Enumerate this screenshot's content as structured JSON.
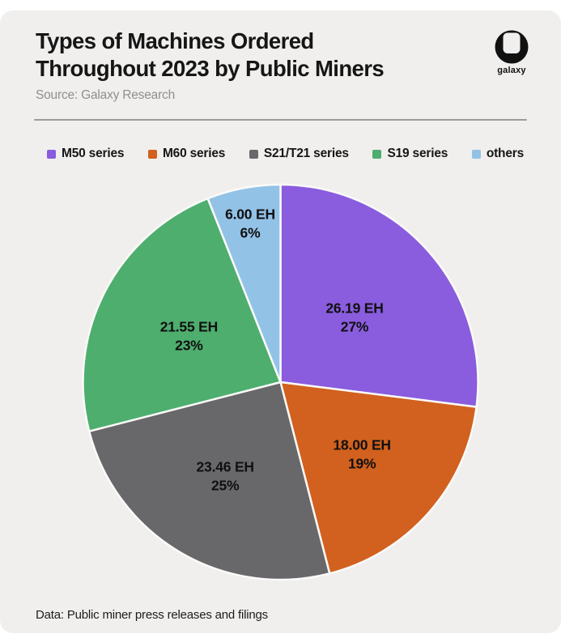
{
  "header": {
    "title_line1": "Types of Machines Ordered",
    "title_line2": "Throughout 2023 by Public Miners",
    "source": "Source: Galaxy Research",
    "logo_text": "galaxy"
  },
  "footer": {
    "note": "Data: Public miner press releases and filings"
  },
  "colors": {
    "page": "#FFFFFF",
    "card_background": "#F0EFED",
    "divider": "#9C9C9C",
    "slice_separator": "#FAFAF8",
    "label_text": "#101010",
    "logo": "#111111"
  },
  "chart_data": {
    "type": "pie",
    "title": "Types of Machines Ordered Throughout 2023 by Public Miners",
    "unit": "EH",
    "start_angle_deg": 0,
    "direction": "clockwise",
    "legend_position": "top",
    "slices": [
      {
        "label": "M50 series",
        "value": 26.19,
        "percent": 27,
        "color": "#8A5CDE",
        "value_label": "26.19 EH",
        "percent_label": "27%",
        "label_radius": 0.5
      },
      {
        "label": "M60 series",
        "value": 18.0,
        "percent": 19,
        "color": "#D2601E",
        "value_label": "18.00 EH",
        "percent_label": "19%",
        "label_radius": 0.55
      },
      {
        "label": "S21/T21 series",
        "value": 23.46,
        "percent": 25,
        "color": "#68686B",
        "value_label": "23.46 EH",
        "percent_label": "25%",
        "label_radius": 0.55
      },
      {
        "label": "S19 series",
        "value": 21.55,
        "percent": 23,
        "color": "#4EAE6E",
        "value_label": "21.55 EH",
        "percent_label": "23%",
        "label_radius": 0.52
      },
      {
        "label": "others",
        "value": 6.0,
        "percent": 6,
        "color": "#93C2E7",
        "value_label": "6.00 EH",
        "percent_label": "6%",
        "label_radius": 0.82
      }
    ]
  }
}
